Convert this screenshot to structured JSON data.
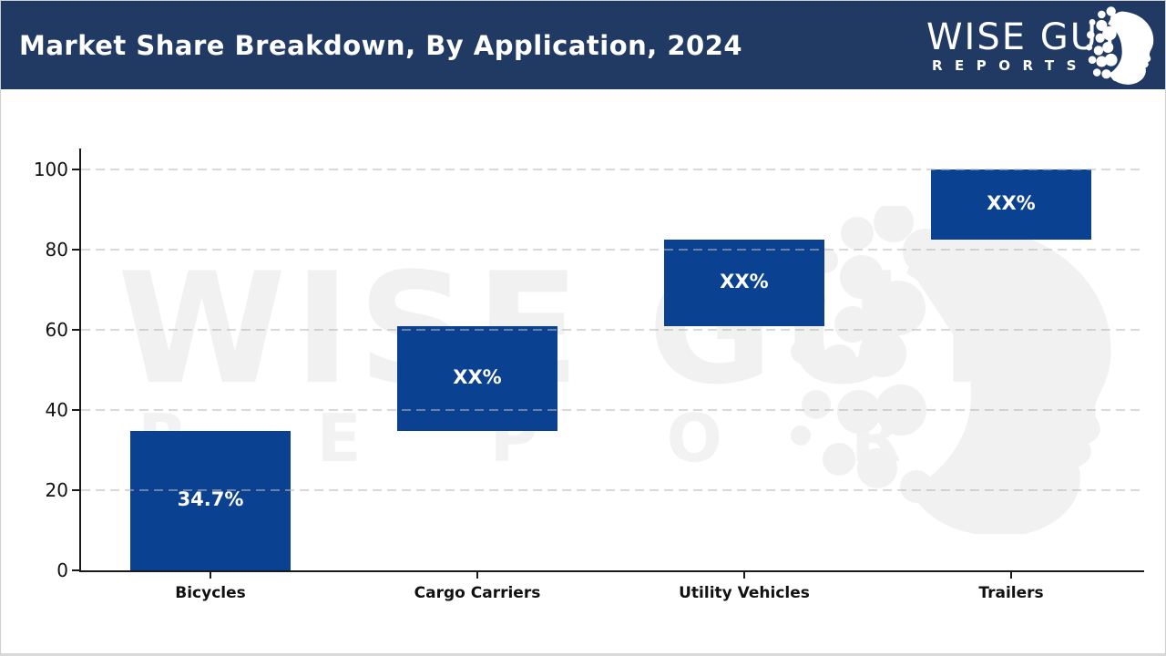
{
  "header": {
    "title": "Market Share Breakdown, By Application, 2024",
    "logo_line1": "WISE GUY",
    "logo_line2": "REPORTS",
    "background_color": "#203A64"
  },
  "watermark": {
    "line1": "WISE GUY",
    "line2": "R E P O R T S"
  },
  "chart_data": {
    "type": "bar",
    "subtype": "waterfall",
    "title": "Market Share Breakdown, By Application, 2024",
    "categories": [
      "Bicycles",
      "Cargo Carriers",
      "Utility Vehicles",
      "Trailers"
    ],
    "segments": [
      {
        "category": "Bicycles",
        "start": 0,
        "end": 34.7,
        "label": "34.7%"
      },
      {
        "category": "Cargo Carriers",
        "start": 34.7,
        "end": 60.8,
        "label": "XX%"
      },
      {
        "category": "Utility Vehicles",
        "start": 60.8,
        "end": 82.4,
        "label": "XX%"
      },
      {
        "category": "Trailers",
        "start": 82.4,
        "end": 100,
        "label": "XX%"
      }
    ],
    "yticks": [
      0,
      20,
      40,
      60,
      80,
      100
    ],
    "ylim": [
      0,
      105
    ],
    "bar_color": "#0a4191",
    "grid": "dashed-horizontal",
    "legend": "none",
    "xlabel": "",
    "ylabel": ""
  }
}
